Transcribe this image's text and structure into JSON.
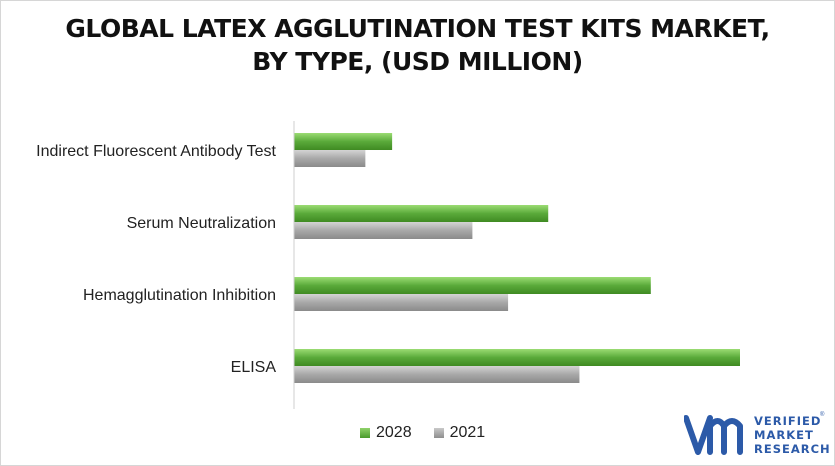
{
  "chart_data": {
    "type": "bar",
    "orientation": "horizontal",
    "title_lines": [
      "GLOBAL LATEX AGGLUTINATION TEST KITS MARKET,",
      "BY TYPE, (USD MILLION)"
    ],
    "categories": [
      "Indirect Fluorescent Antibody Test",
      "Serum Neutralization",
      "Hemagglutination Inhibition",
      "ELISA"
    ],
    "series": [
      {
        "name": "2028",
        "values": [
          22,
          57,
          80,
          100
        ],
        "color": "#5aaa3a"
      },
      {
        "name": "2021",
        "values": [
          16,
          40,
          48,
          64
        ],
        "color": "#a8a8a8"
      }
    ],
    "xlim": [
      0,
      100
    ],
    "value_axis_visible": false,
    "grid": false,
    "legend_position": "bottom"
  },
  "logo": {
    "mark": "vmr-logo-mark",
    "lines": [
      "VERIFIED",
      "MARKET",
      "RESEARCH"
    ],
    "trademark": "®",
    "color": "#2c5aa8"
  }
}
